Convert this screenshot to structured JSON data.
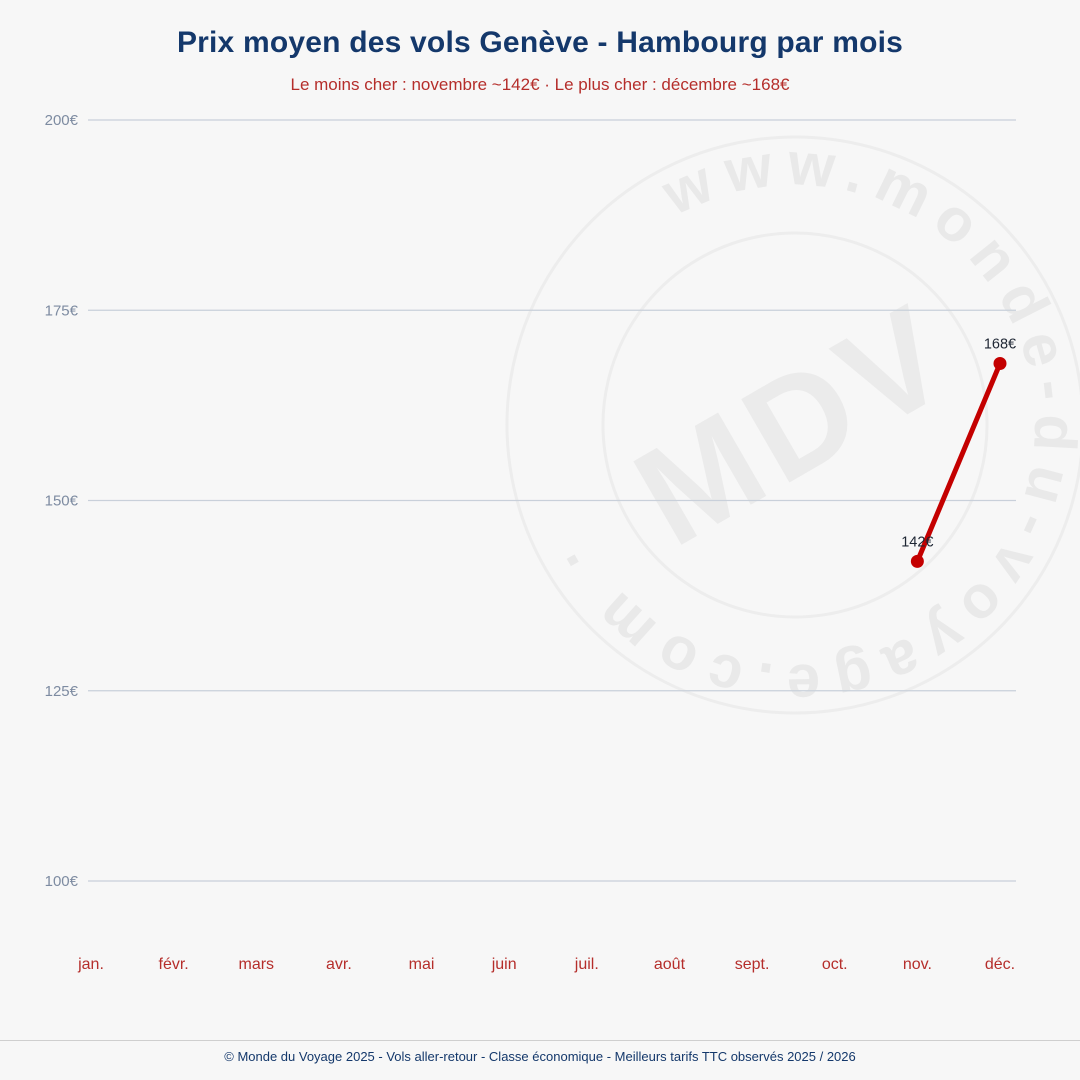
{
  "chart_data": {
    "type": "line",
    "title": "Prix moyen des vols Genève - Hambourg par mois",
    "subtitle": "Le moins cher : novembre ~142€ · Le plus cher : décembre ~168€",
    "categories": [
      "jan.",
      "févr.",
      "mars",
      "avr.",
      "mai",
      "juin",
      "juil.",
      "août",
      "sept.",
      "oct.",
      "nov.",
      "déc."
    ],
    "series": [
      {
        "name": "Prix moyen",
        "values": [
          null,
          null,
          null,
          null,
          null,
          null,
          null,
          null,
          null,
          null,
          142,
          168
        ]
      }
    ],
    "point_labels": [
      "142€",
      "168€"
    ],
    "cheapest": {
      "month": "novembre",
      "value": 142
    },
    "most_expensive": {
      "month": "décembre",
      "value": 168
    },
    "y_ticks": [
      100,
      125,
      150,
      175,
      200
    ],
    "y_tick_labels": [
      "100€",
      "125€",
      "150€",
      "175€",
      "200€"
    ],
    "ylim": [
      100,
      200
    ],
    "currency": "€",
    "grid": true,
    "legend": "none",
    "xlabel": "",
    "ylabel": ""
  },
  "watermark": {
    "ring_text": "www.monde-du-voyage.com ·",
    "center_text": "MDV"
  },
  "footer": {
    "text": "© Monde du Voyage 2025 - Vols aller-retour - Classe économique - Meilleurs tarifs TTC observés 2025 / 2026"
  },
  "colors": {
    "background": "#f7f7f7",
    "title": "#14386b",
    "subtitle": "#b52e2b",
    "grid": "#c9d0da",
    "axis_tick": "#7d8ba1",
    "month_label": "#b52e2b",
    "line": "#c40000",
    "point": "#c40000",
    "point_label": "#1e2633",
    "footer_text": "#14386b",
    "watermark": "#e9e9e9"
  }
}
